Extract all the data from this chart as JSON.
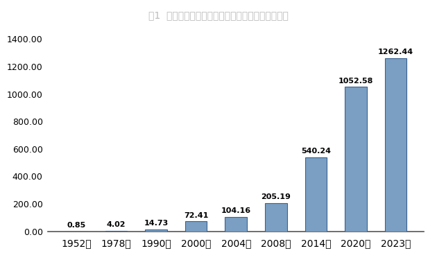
{
  "title": "图1  新中国成立以来主要年份农业生产总值（亿元）",
  "categories": [
    "1952年",
    "1978年",
    "1990年",
    "2000年",
    "2004年",
    "2008年",
    "2014年",
    "2020年",
    "2023年"
  ],
  "values": [
    0.85,
    4.02,
    14.73,
    72.41,
    104.16,
    205.19,
    540.24,
    1052.58,
    1262.44
  ],
  "bar_color": "#7a9fc2",
  "bar_edge_color": "#3a6090",
  "ylim": [
    0,
    1450
  ],
  "yticks": [
    0.0,
    200.0,
    400.0,
    600.0,
    800.0,
    1000.0,
    1200.0,
    1400.0
  ],
  "background_color": "#ffffff",
  "title_color": "#bbbbbb",
  "title_fontsize": 10,
  "tick_fontsize": 9,
  "value_fontsize": 8
}
